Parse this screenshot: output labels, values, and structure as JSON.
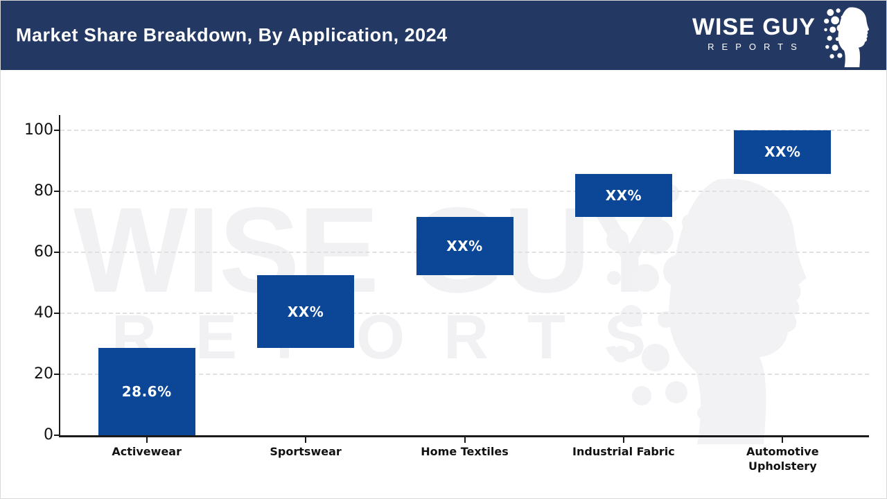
{
  "header": {
    "title": "Market Share Breakdown, By Application, 2024",
    "logo": {
      "line1": "WISE GUY",
      "line2": "REPORTS"
    }
  },
  "watermark": {
    "line1": "WISE GUY",
    "line2": "REPORTS"
  },
  "colors": {
    "header_bg": "#233863",
    "bar": "#0b4697",
    "bar_label": "#ffffff",
    "gridline": "#e0e0e0",
    "axis": "#1a1a1a",
    "watermark": "#f1f1f4"
  },
  "chart_data": {
    "type": "bar",
    "subtype": "waterfall",
    "title": "Market Share Breakdown, By Application, 2024",
    "categories": [
      "Activewear",
      "Sportswear",
      "Home Textiles",
      "Industrial Fabric",
      "Automotive Upholstery"
    ],
    "bars": [
      {
        "category": "Activewear",
        "start": 0,
        "end": 28.6,
        "label": "28.6%"
      },
      {
        "category": "Sportswear",
        "start": 28.6,
        "end": 52.4,
        "label": "XX%"
      },
      {
        "category": "Home Textiles",
        "start": 52.4,
        "end": 71.5,
        "label": "XX%"
      },
      {
        "category": "Industrial Fabric",
        "start": 71.5,
        "end": 85.7,
        "label": "XX%"
      },
      {
        "category": "Automotive Upholstery",
        "start": 85.7,
        "end": 100,
        "label": "XX%"
      }
    ],
    "yticks": [
      0,
      20,
      40,
      60,
      80,
      100
    ],
    "ylim": [
      0,
      105
    ],
    "grid": "horizontal-dashed",
    "legend": "none",
    "xlabel": "",
    "ylabel": ""
  }
}
